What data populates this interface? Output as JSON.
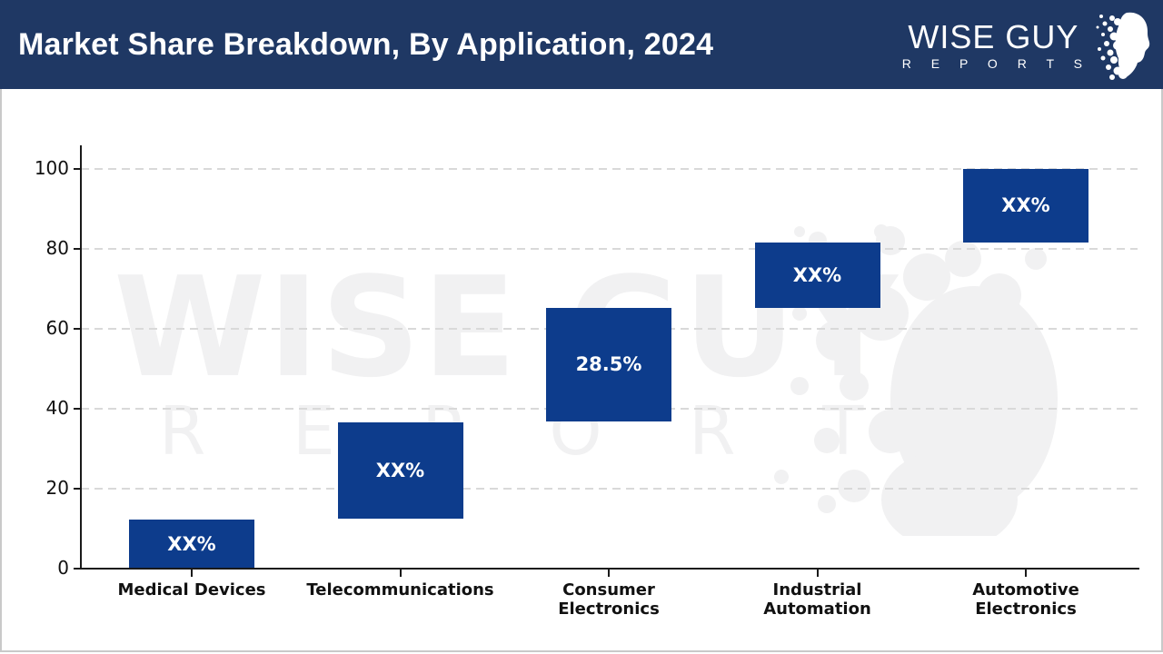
{
  "header": {
    "title": "Market Share Breakdown, By Application, 2024",
    "bg_color": "#1f3864",
    "logo": {
      "line1": "WISE GUY",
      "line2": "R E P O R T S"
    }
  },
  "watermark": {
    "line1": "WISE GUY",
    "line2": "R E P O R T S",
    "color": "#f1f1f2"
  },
  "chart_data": {
    "type": "bar",
    "subtype": "waterfall",
    "title": "Market Share Breakdown, By Application, 2024",
    "xlabel": "",
    "ylabel": "",
    "ylim": [
      0,
      105
    ],
    "yticks": [
      0,
      20,
      40,
      60,
      80,
      100
    ],
    "grid": "horizontal-dashed",
    "legend": "none",
    "bar_color": "#0d3c8c",
    "bar_label_color": "#ffffff",
    "axis_color": "#1a1a1a",
    "grid_color": "#d9d9d9",
    "categories": [
      "Medical Devices",
      "Telecommunications",
      "Consumer Electronics",
      "Industrial Automation",
      "Automotive Electronics"
    ],
    "category_lines": [
      [
        "Medical Devices"
      ],
      [
        "Telecommunications"
      ],
      [
        "Consumer",
        "Electronics"
      ],
      [
        "Industrial",
        "Automation"
      ],
      [
        "Automotive",
        "Electronics"
      ]
    ],
    "segments": [
      {
        "category": "Medical Devices",
        "start": 0,
        "end": 12.3,
        "value": 12.3,
        "label": "XX%"
      },
      {
        "category": "Telecommunications",
        "start": 12.4,
        "end": 36.5,
        "value": 24.1,
        "label": "XX%"
      },
      {
        "category": "Consumer Electronics",
        "start": 36.8,
        "end": 65.3,
        "value": 28.5,
        "label": "28.5%"
      },
      {
        "category": "Industrial Automation",
        "start": 65.3,
        "end": 81.6,
        "value": 16.3,
        "label": "XX%"
      },
      {
        "category": "Automotive Electronics",
        "start": 81.7,
        "end": 99.9,
        "value": 18.2,
        "label": "XX%"
      }
    ]
  }
}
